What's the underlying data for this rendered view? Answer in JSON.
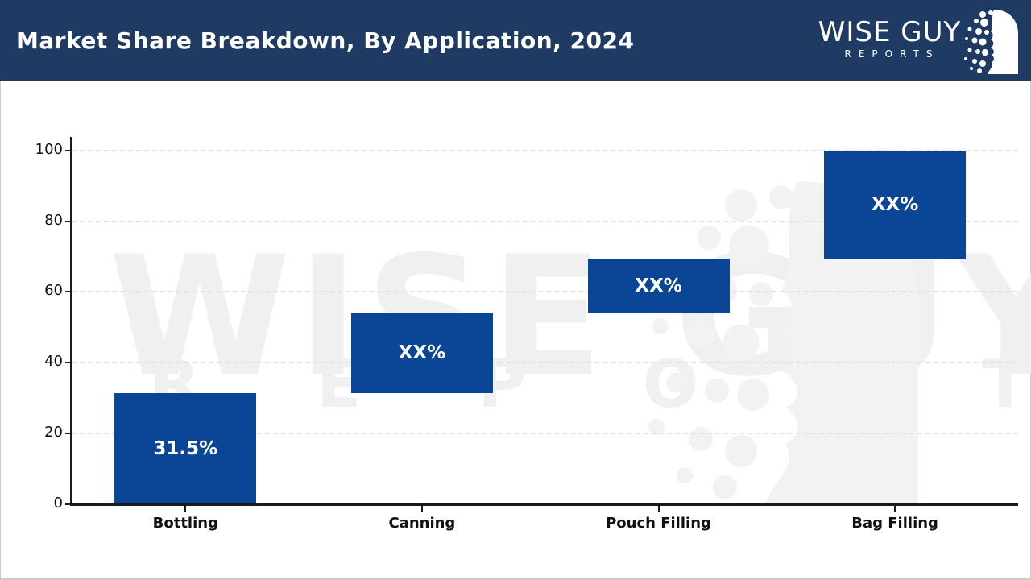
{
  "header": {
    "title": "Market Share Breakdown, By Application, 2024",
    "logo": {
      "line1": "WISE GUY",
      "line2": "REPORTS",
      "face_icon": "face-profile-dots"
    }
  },
  "watermark": {
    "line1": "WISE GUY",
    "line2": "REPORTS",
    "face_icon": "face-profile-dots"
  },
  "colors": {
    "header_bg": "#1f3a63",
    "bar_fill": "#0b4596",
    "bar_label": "#ffffff",
    "grid": "#e2e2e2",
    "axis": "#1a1a1a",
    "watermark": "#f0f0f0"
  },
  "chart_data": {
    "type": "bar",
    "subtype": "waterfall",
    "title": "Market Share Breakdown, By Application, 2024",
    "categories": [
      "Bottling",
      "Canning",
      "Pouch Filling",
      "Bag Filling"
    ],
    "segments": [
      {
        "category": "Bottling",
        "start": 0,
        "end": 31.5,
        "label": "31.5%"
      },
      {
        "category": "Canning",
        "start": 31.5,
        "end": 54,
        "label": "XX%"
      },
      {
        "category": "Pouch Filling",
        "start": 54,
        "end": 69.5,
        "label": "XX%"
      },
      {
        "category": "Bag Filling",
        "start": 69.5,
        "end": 100,
        "label": "XX%"
      }
    ],
    "yticks": [
      0,
      20,
      40,
      60,
      80,
      100
    ],
    "ylim": [
      0,
      106
    ],
    "xlabel": "",
    "ylabel": "",
    "grid": "horizontal-dashed",
    "legend": "none"
  }
}
